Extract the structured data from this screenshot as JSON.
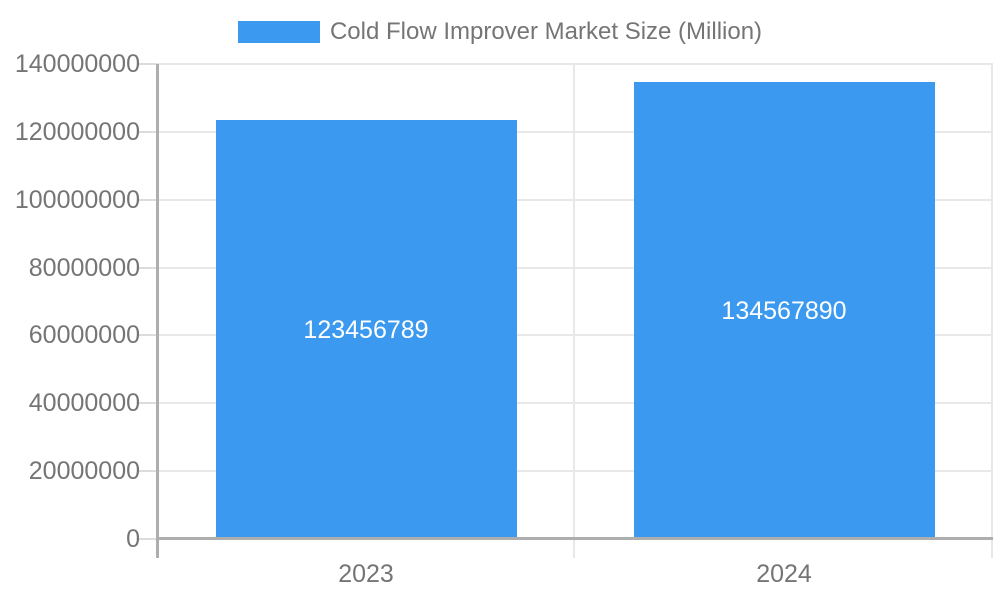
{
  "chart_data": {
    "type": "bar",
    "title": "Cold Flow Improver Market Size (Million)",
    "categories": [
      "2023",
      "2024"
    ],
    "series": [
      {
        "name": "Cold Flow Improver Market Size (Million)",
        "values": [
          123456789,
          134567890
        ],
        "color": "#3B9AEF"
      }
    ],
    "data_labels": [
      "123456789",
      "134567890"
    ],
    "yticks": [
      0,
      20000000,
      40000000,
      60000000,
      80000000,
      100000000,
      120000000,
      140000000
    ],
    "ylim": [
      0,
      140000000
    ],
    "xlabel": "",
    "ylabel": "",
    "grid": true,
    "legend_position": "top",
    "colors": {
      "bar": "#3B9AEF",
      "axis_text": "#757575",
      "data_label_text": "#FFFFFF",
      "gridline": "#E8E8E8",
      "axis_line": "#AEAEAE",
      "tick": "#DCDCDC",
      "background": "#FFFFFF"
    }
  },
  "legend": {
    "label": "Cold Flow Improver Market Size (Million)"
  }
}
